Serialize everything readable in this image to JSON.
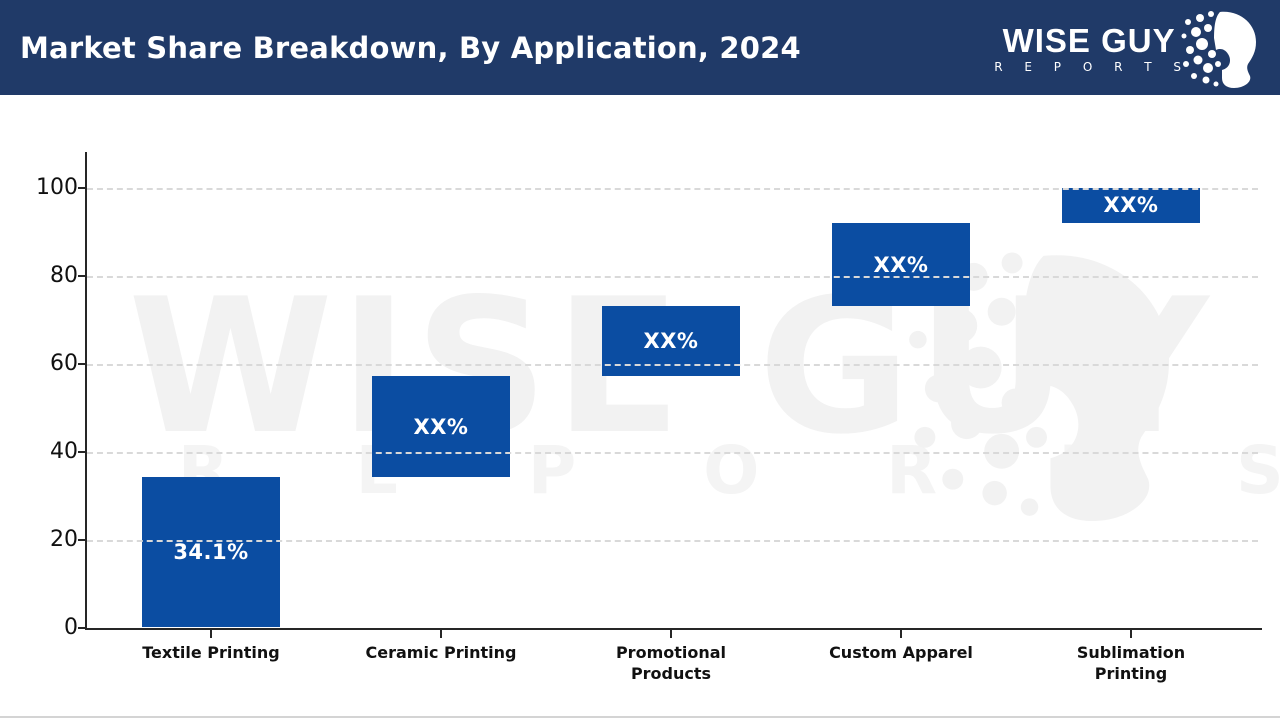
{
  "header": {
    "title": "Market Share Breakdown, By Application, 2024",
    "logo": {
      "line1": "WISE GUY",
      "line2": "R E P O R T S"
    }
  },
  "chart_data": {
    "type": "bar",
    "variant": "waterfall",
    "title": "Market Share Breakdown, By Application, 2024",
    "categories": [
      "Textile Printing",
      "Ceramic Printing",
      "Promotional Products",
      "Custom Apparel",
      "Sublimation Printing"
    ],
    "segments": [
      {
        "category": "Textile Printing",
        "start": 0,
        "end": 34.1,
        "label": "34.1%"
      },
      {
        "category": "Ceramic Printing",
        "start": 34.1,
        "end": 57.2,
        "label": "XX%"
      },
      {
        "category": "Promotional Products",
        "start": 57.2,
        "end": 73.0,
        "label": "XX%"
      },
      {
        "category": "Custom Apparel",
        "start": 73.0,
        "end": 91.9,
        "label": "XX%"
      },
      {
        "category": "Sublimation Printing",
        "start": 91.9,
        "end": 100.0,
        "label": "XX%"
      }
    ],
    "xlabel": "",
    "ylabel": "",
    "ylim": [
      0,
      100
    ],
    "yticks": [
      0,
      20,
      40,
      60,
      80,
      100
    ],
    "grid": "horizontal-dashed",
    "legend": "none",
    "colors": {
      "bar": "#0b4da2",
      "bar_label": "#ffffff",
      "grid": "#d9d9d9",
      "axis": "#262626",
      "header_bg": "#203a68",
      "header_text": "#ffffff"
    }
  },
  "watermark": {
    "line1": "WISE GUY",
    "line2": "R E P O R T S"
  }
}
